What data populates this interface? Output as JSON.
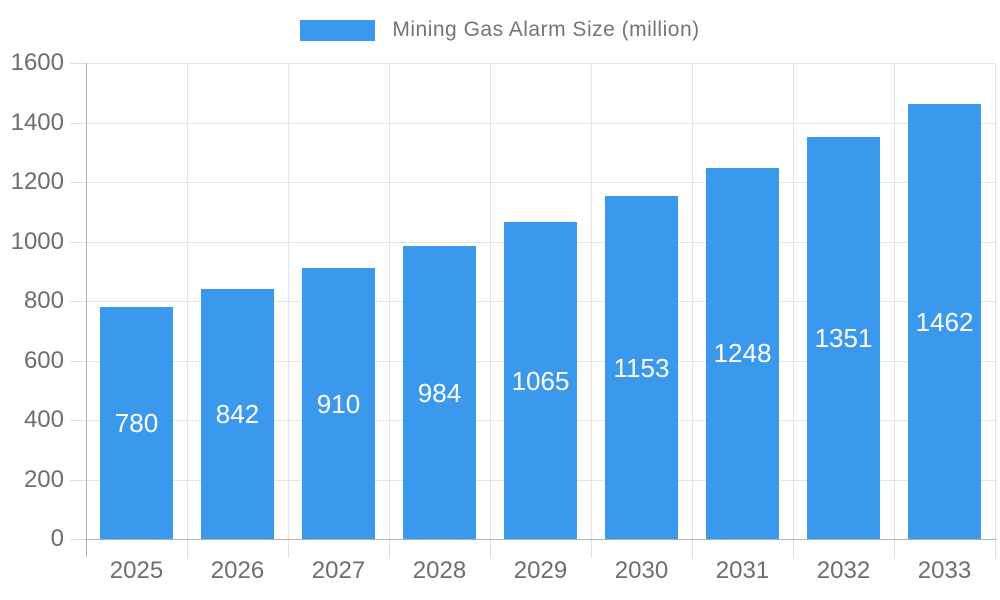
{
  "legend": {
    "label": "Mining Gas Alarm Size (million)"
  },
  "colors": {
    "bar": "#3b99ed",
    "bar_label": "#ffffff",
    "axis_text": "#6e6e6e",
    "legend_text": "#757575",
    "grid": "#e4e4e4",
    "axis_line": "#b0b0b0",
    "tick": "#dedede",
    "background": "#ffffff"
  },
  "chart_data": {
    "type": "bar",
    "title": "Mining Gas Alarm Size (million)",
    "categories": [
      "2025",
      "2026",
      "2027",
      "2028",
      "2029",
      "2030",
      "2031",
      "2032",
      "2033"
    ],
    "values": [
      780,
      842,
      910,
      984,
      1065,
      1153,
      1248,
      1351,
      1462
    ],
    "xlabel": "",
    "ylabel": "",
    "ylim": [
      0,
      1600
    ],
    "ytick_step": 200,
    "yticks": [
      0,
      200,
      400,
      600,
      800,
      1000,
      1200,
      1400,
      1600
    ],
    "grid": true,
    "legend_position": "top",
    "value_labels": "inside-center"
  }
}
